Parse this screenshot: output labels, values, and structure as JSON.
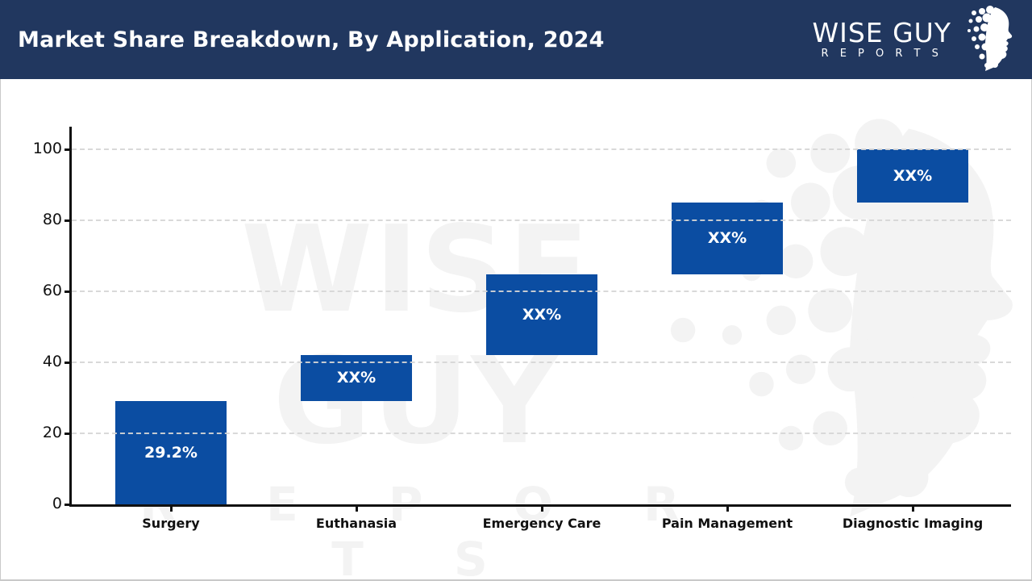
{
  "header": {
    "title": "Market Share Breakdown, By Application, 2024",
    "logo": {
      "line1": "WISE GUY",
      "line2": "R E P O R T S"
    }
  },
  "watermark": {
    "line1": "WISE GUY",
    "line2": "R E P O R T S"
  },
  "colors": {
    "header_bg": "#21375f",
    "bar": "#0b4da2",
    "grid": "#d6d6d6",
    "axis": "#111111",
    "bar_label": "#ffffff",
    "title_text": "#ffffff",
    "watermark": "#f3f3f3"
  },
  "chart_data": {
    "type": "bar",
    "subtype": "waterfall",
    "title": "Market Share Breakdown, By Application, 2024",
    "categories": [
      "Surgery",
      "Euthanasia",
      "Emergency Care",
      "Pain Management",
      "Diagnostic Imaging"
    ],
    "segments": [
      {
        "category": "Surgery",
        "label": "29.2%",
        "start": 0,
        "end": 29.2
      },
      {
        "category": "Euthanasia",
        "label": "XX%",
        "start": 29.2,
        "end": 42.1
      },
      {
        "category": "Emergency Care",
        "label": "XX%",
        "start": 42.1,
        "end": 64.8
      },
      {
        "category": "Pain Management",
        "label": "XX%",
        "start": 64.8,
        "end": 85.0
      },
      {
        "category": "Diagnostic Imaging",
        "label": "XX%",
        "start": 85.0,
        "end": 100
      }
    ],
    "values": [
      29.2,
      12.9,
      22.7,
      20.2,
      15.0
    ],
    "yticks": [
      0,
      20,
      40,
      60,
      80,
      100
    ],
    "ylim": [
      0,
      106
    ],
    "xlabel": "",
    "ylabel": "",
    "grid": "horizontal-dashed",
    "legend": "none",
    "bar_color": "#0b4da2"
  }
}
